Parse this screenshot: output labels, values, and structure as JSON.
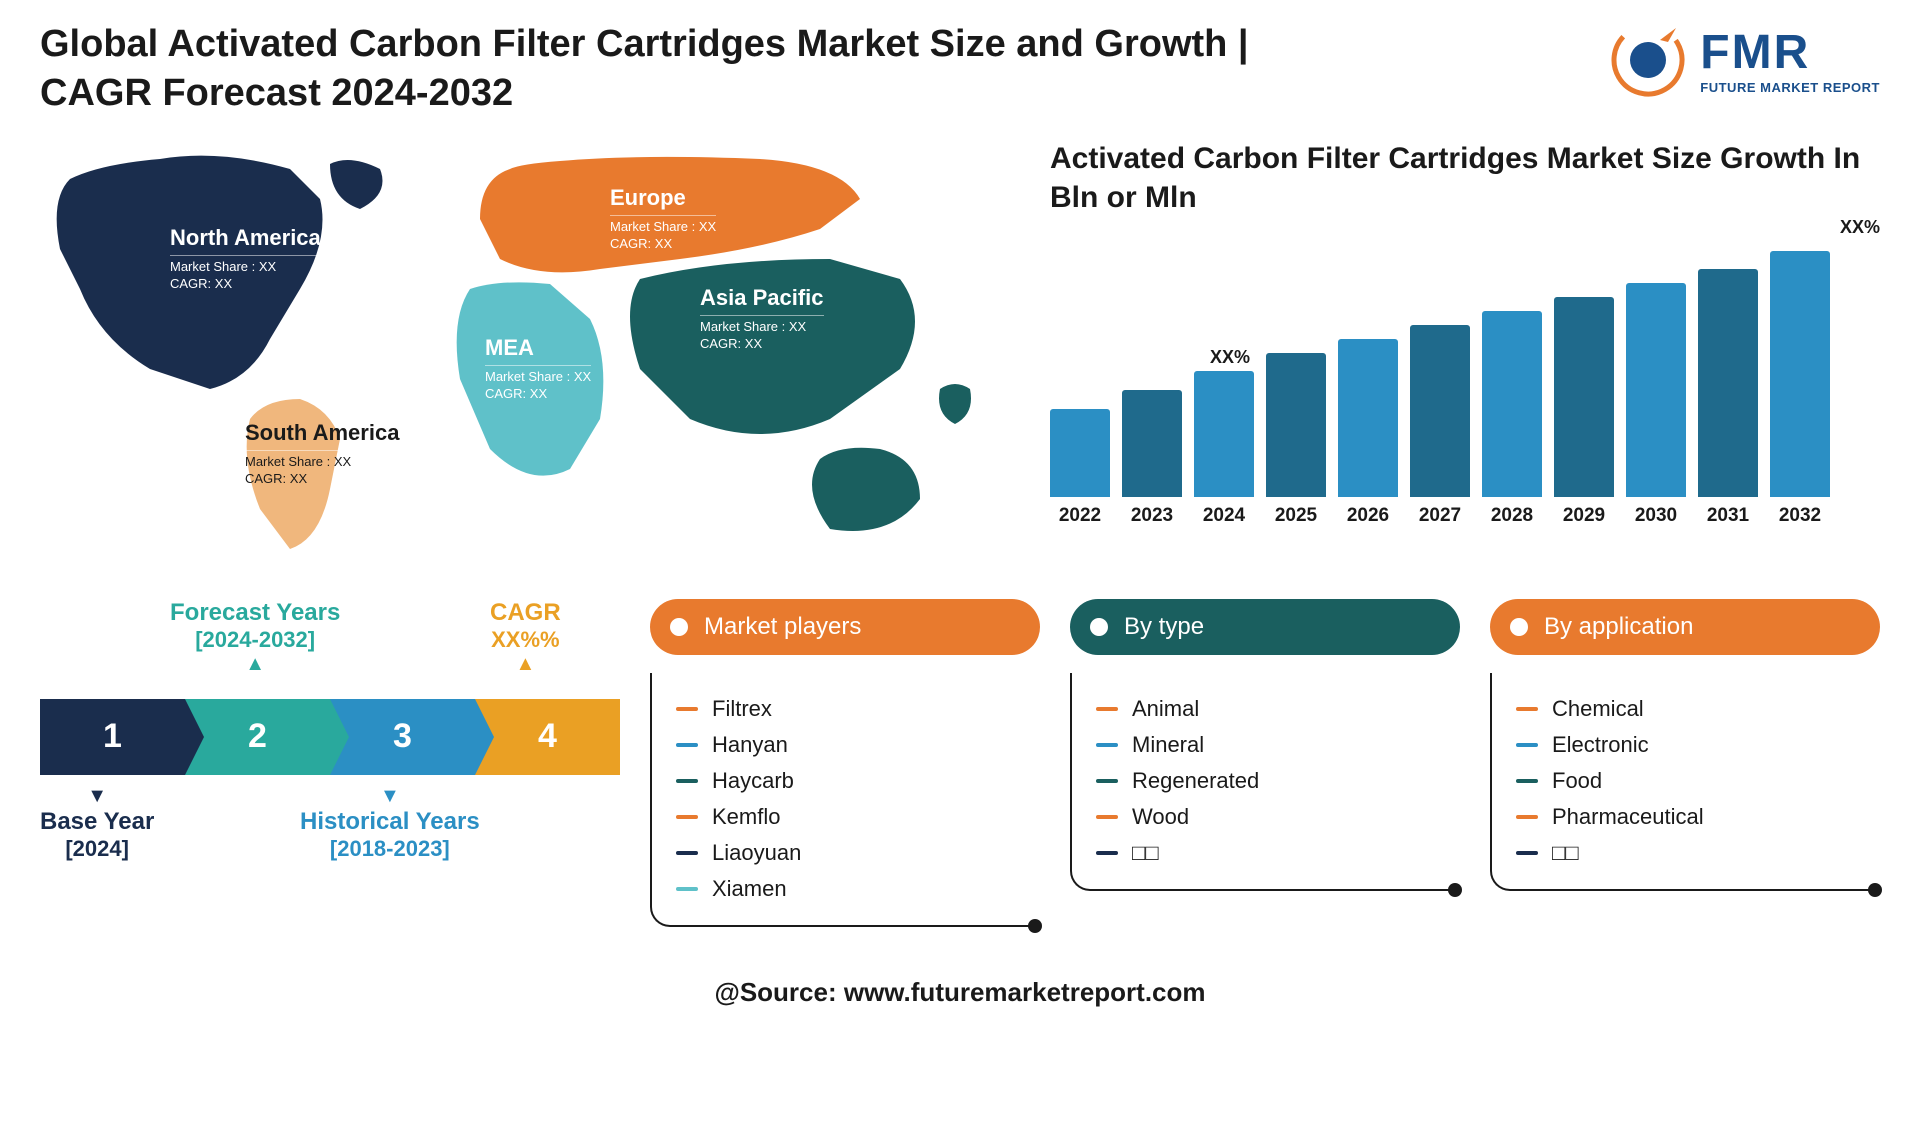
{
  "title": "Global Activated Carbon Filter Cartridges Market Size and Growth | CAGR Forecast 2024-2032",
  "logo": {
    "main": "FMR",
    "sub": "FUTURE MARKET REPORT",
    "icon_color_primary": "#e87a2e",
    "icon_color_secondary": "#1a4f8c"
  },
  "map": {
    "regions": [
      {
        "name": "North America",
        "share": "Market Share : XX",
        "cagr": "CAGR: XX",
        "color": "#1a2d4d",
        "text_dark": false
      },
      {
        "name": "South America",
        "share": "Market Share : XX",
        "cagr": "CAGR: XX",
        "color": "#f0b77d",
        "text_dark": true
      },
      {
        "name": "Europe",
        "share": "Market Share : XX",
        "cagr": "CAGR: XX",
        "color": "#e87a2e",
        "text_dark": false
      },
      {
        "name": "MEA",
        "share": "Market Share : XX",
        "cagr": "CAGR: XX",
        "color": "#5fc1c9",
        "text_dark": false
      },
      {
        "name": "Asia Pacific",
        "share": "Market Share : XX",
        "cagr": "CAGR: XX",
        "color": "#1a5f5f",
        "text_dark": false
      }
    ]
  },
  "chart": {
    "title": "Activated Carbon Filter Cartridges Market Size Growth In Bln or Mln",
    "type": "bar",
    "years": [
      "2022",
      "2023",
      "2024",
      "2025",
      "2026",
      "2027",
      "2028",
      "2029",
      "2030",
      "2031",
      "2032"
    ],
    "values": [
      95,
      115,
      135,
      155,
      170,
      185,
      200,
      215,
      230,
      245,
      265
    ],
    "alt_colors": [
      "#2b8fc4",
      "#1f6a8c",
      "#2b8fc4",
      "#1f6a8c",
      "#2b8fc4",
      "#1f6a8c",
      "#2b8fc4",
      "#1f6a8c",
      "#2b8fc4",
      "#1f6a8c",
      "#2b8fc4"
    ],
    "label_2024": "XX%",
    "label_2032": "XX%",
    "ylim": [
      0,
      280
    ]
  },
  "timeline": {
    "forecast": {
      "title": "Forecast Years",
      "sub": "[2024-2032]",
      "color": "#29a99d"
    },
    "cagr": {
      "title": "CAGR",
      "sub": "XX%%",
      "color": "#eaa024"
    },
    "base": {
      "title": "Base Year",
      "sub": "[2024]",
      "color": "#1a2d4d"
    },
    "hist": {
      "title": "Historical Years",
      "sub": "[2018-2023]",
      "color": "#2b8fc4"
    },
    "steps": [
      {
        "num": "1",
        "color": "#1a2d4d"
      },
      {
        "num": "2",
        "color": "#29a99d"
      },
      {
        "num": "3",
        "color": "#2b8fc4"
      },
      {
        "num": "4",
        "color": "#eaa024"
      }
    ]
  },
  "categories": {
    "players": {
      "title": "Market players",
      "header_color": "#e87a2e",
      "items": [
        {
          "label": "Filtrex",
          "color": "#e87a2e"
        },
        {
          "label": "Hanyan",
          "color": "#2b8fc4"
        },
        {
          "label": "Haycarb",
          "color": "#1a5f5f"
        },
        {
          "label": "Kemflo",
          "color": "#e87a2e"
        },
        {
          "label": "Liaoyuan",
          "color": "#1a2d4d"
        },
        {
          "label": "Xiamen",
          "color": "#5fc1c9"
        }
      ]
    },
    "type": {
      "title": "By type",
      "header_color": "#1a5f5f",
      "items": [
        {
          "label": "Animal",
          "color": "#e87a2e"
        },
        {
          "label": "Mineral",
          "color": "#2b8fc4"
        },
        {
          "label": "Regenerated",
          "color": "#1a5f5f"
        },
        {
          "label": "Wood",
          "color": "#e87a2e"
        },
        {
          "label": "□□",
          "color": "#1a2d4d"
        }
      ]
    },
    "application": {
      "title": "By application",
      "header_color": "#e87a2e",
      "items": [
        {
          "label": "Chemical",
          "color": "#e87a2e"
        },
        {
          "label": "Electronic",
          "color": "#2b8fc4"
        },
        {
          "label": "Food",
          "color": "#1a5f5f"
        },
        {
          "label": "Pharmaceutical",
          "color": "#e87a2e"
        },
        {
          "label": "□□",
          "color": "#1a2d4d"
        }
      ]
    }
  },
  "source": "@Source: www.futuremarketreport.com"
}
